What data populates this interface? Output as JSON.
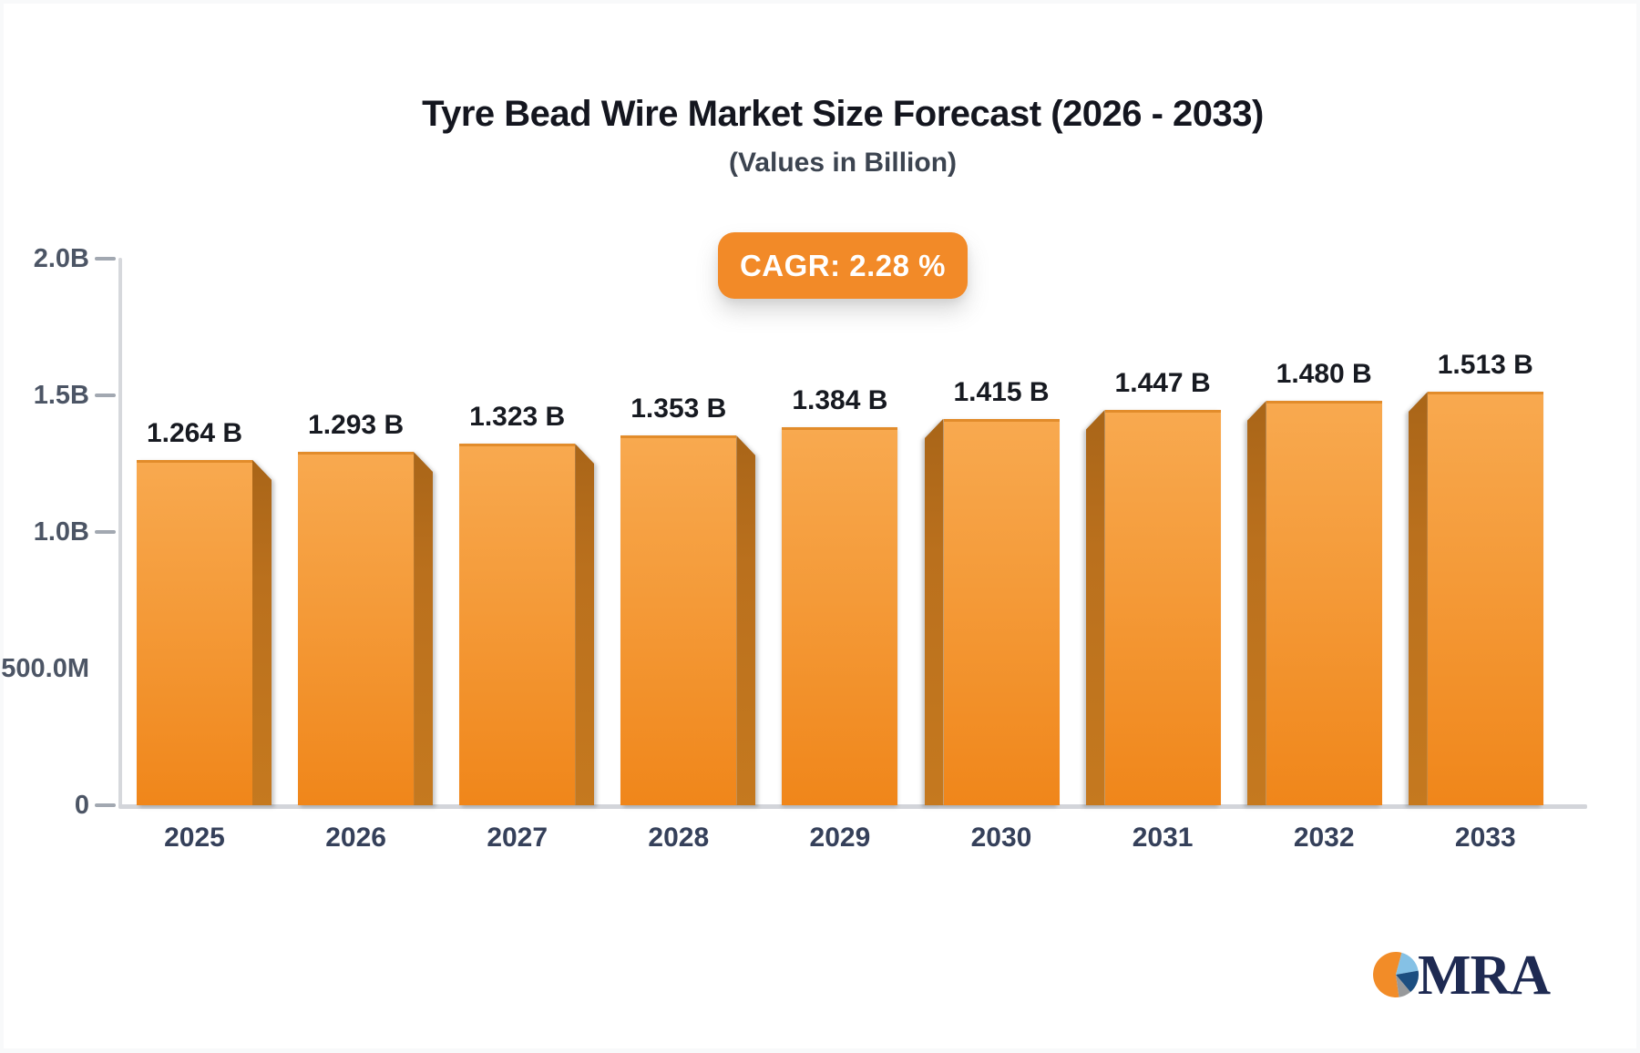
{
  "header": {
    "title": "Tyre Bead Wire Market Size Forecast (2026 - 2033)",
    "subtitle": "(Values in Billion)"
  },
  "badge": {
    "label": "CAGR: 2.28 %",
    "background_color": "#F28A28",
    "text_color": "#FFFFFF"
  },
  "chart_data": {
    "type": "bar",
    "title": "Tyre Bead Wire Market Size Forecast (2026 - 2033)",
    "subtitle": "(Values in Billion)",
    "categories": [
      "2025",
      "2026",
      "2027",
      "2028",
      "2029",
      "2030",
      "2031",
      "2032",
      "2033"
    ],
    "values": [
      1.264,
      1.293,
      1.323,
      1.353,
      1.384,
      1.415,
      1.447,
      1.48,
      1.513
    ],
    "value_labels": [
      "1.264 B",
      "1.293 B",
      "1.323 B",
      "1.353 B",
      "1.384 B",
      "1.415 B",
      "1.447 B",
      "1.480 B",
      "1.513 B"
    ],
    "unit": "Billion",
    "xlabel": "",
    "ylabel": "",
    "ylim": [
      0,
      2.0
    ],
    "yticks": [
      {
        "label": "2.0B",
        "value": 2.0,
        "dash": true
      },
      {
        "label": "1.5B",
        "value": 1.5,
        "dash": true
      },
      {
        "label": "1.0B",
        "value": 1.0,
        "dash": true
      },
      {
        "label": "500.0M",
        "value": 0.5,
        "dash": false
      },
      {
        "label": "0",
        "value": 0.0,
        "dash": true
      }
    ],
    "grid": false,
    "legend": "none",
    "bar_style": "3d-prism",
    "colors": {
      "bar_gradient_top": "#F8A94F",
      "bar_gradient_bottom": "#F0861A",
      "bar_top_edge": "#E28C2B",
      "bar_side": "#BA701D",
      "axis": "#D3D5DA",
      "tick_text": "#4C5565",
      "category_text": "#35405A",
      "value_text": "#171A21"
    }
  },
  "logo": {
    "text": "MRA",
    "text_color": "#1E2A52",
    "pie_colors": {
      "orange": "#F28C28",
      "light_blue": "#85C1E5",
      "navy": "#1C4E80",
      "gray": "#97999B"
    }
  }
}
